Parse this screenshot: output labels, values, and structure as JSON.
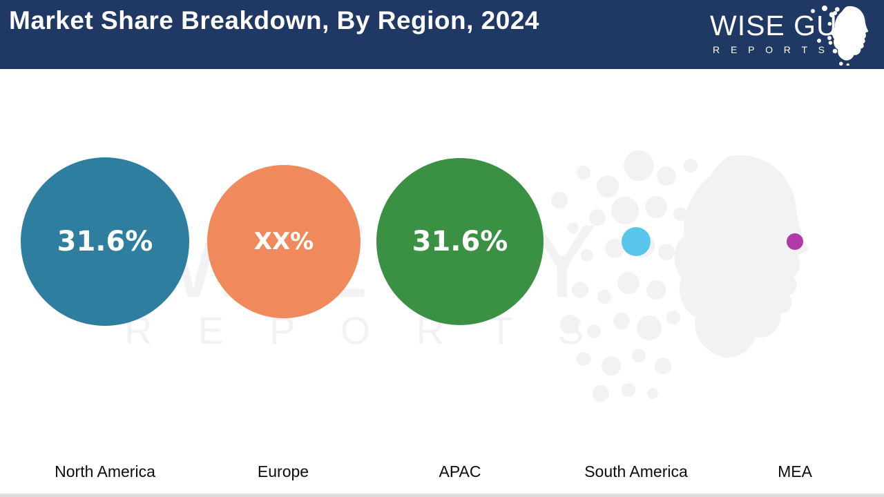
{
  "header": {
    "title": "Market Share Breakdown, By Region, 2024"
  },
  "logo": {
    "name": "WISE GUY",
    "reports": "R E P O R T S"
  },
  "watermark": {
    "name": "WISE GUY",
    "reports": "R E P O R T S"
  },
  "colors": {
    "header_bg": "#1f3864",
    "watermark_gray": "#f2f2f5",
    "bottom_strip": "#dcdddd"
  },
  "chart_data": {
    "type": "bubble",
    "title": "Market Share Breakdown, By Region, 2024",
    "categories": [
      "North America",
      "Europe",
      "APAC",
      "South America",
      "MEA"
    ],
    "series": [
      {
        "name": "North America",
        "display_value": "31.6%",
        "share_pct": 31.6,
        "color": "#2e7f9f",
        "radius_px": 122
      },
      {
        "name": "Europe",
        "display_value": "XX%",
        "share_pct": null,
        "color": "#f08a5d",
        "radius_px": 111
      },
      {
        "name": "APAC",
        "display_value": "31.6%",
        "share_pct": 31.6,
        "color": "#3a9144",
        "radius_px": 121
      },
      {
        "name": "South America",
        "display_value": "",
        "share_pct": null,
        "color": "#58c5ea",
        "radius_px": 21
      },
      {
        "name": "MEA",
        "display_value": "",
        "share_pct": null,
        "color": "#b13aa6",
        "radius_px": 12
      }
    ],
    "legend_position": "labels-below-bubbles",
    "grid": false
  }
}
